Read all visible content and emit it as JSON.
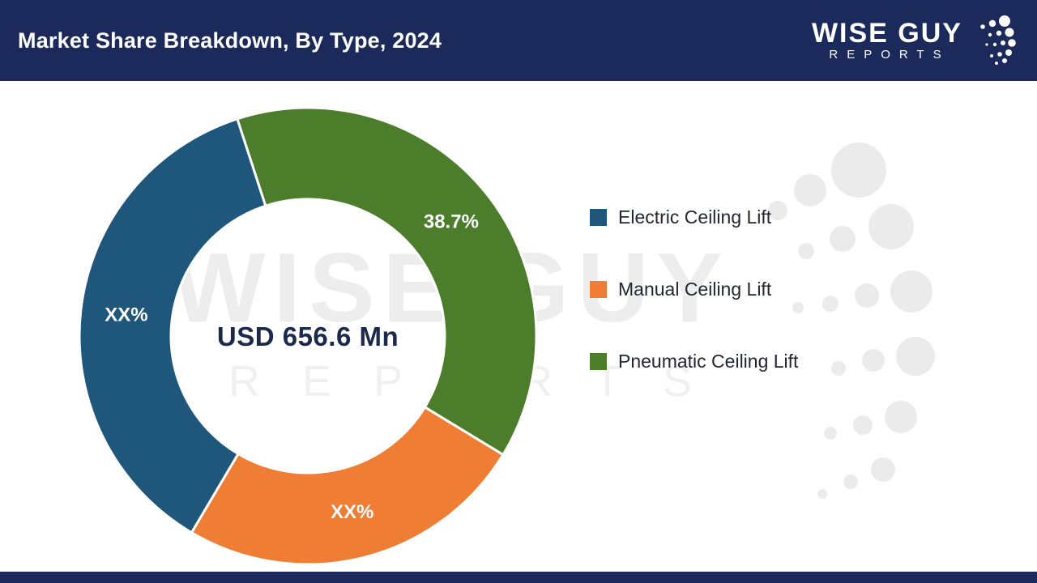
{
  "header": {
    "title": "Market Share Breakdown, By Type, 2024",
    "logo": {
      "line1": "WISE GUY",
      "line2": "REPORTS"
    }
  },
  "watermark": {
    "line1": "WISE GUY",
    "line2": "REPORTS"
  },
  "chart_data": {
    "type": "donut",
    "title": "Market Share Breakdown, By Type, 2024",
    "center_label": "USD 656.6 Mn",
    "start_angle_deg": -18,
    "inner_radius_ratio": 0.6,
    "legend_position": "right",
    "segments": [
      {
        "label": "Pneumatic Ceiling Lift",
        "value": 38.7,
        "display_label": "38.7%",
        "color": "#4c7d2b"
      },
      {
        "label": "Manual Ceiling Lift",
        "value": 24.8,
        "display_label": "XX%",
        "color": "#ef7d33"
      },
      {
        "label": "Electric Ceiling Lift",
        "value": 36.5,
        "display_label": "XX%",
        "color": "#1f567c"
      }
    ],
    "legend": [
      {
        "label": "Electric Ceiling Lift",
        "color": "#1f567c"
      },
      {
        "label": "Manual Ceiling Lift",
        "color": "#ef7d33"
      },
      {
        "label": "Pneumatic Ceiling Lift",
        "color": "#4c7d2b"
      }
    ]
  },
  "colors": {
    "header_bg": "#1b2a5a",
    "footer_bg": "#1b2a5a",
    "center_text": "#1b2a4a"
  }
}
